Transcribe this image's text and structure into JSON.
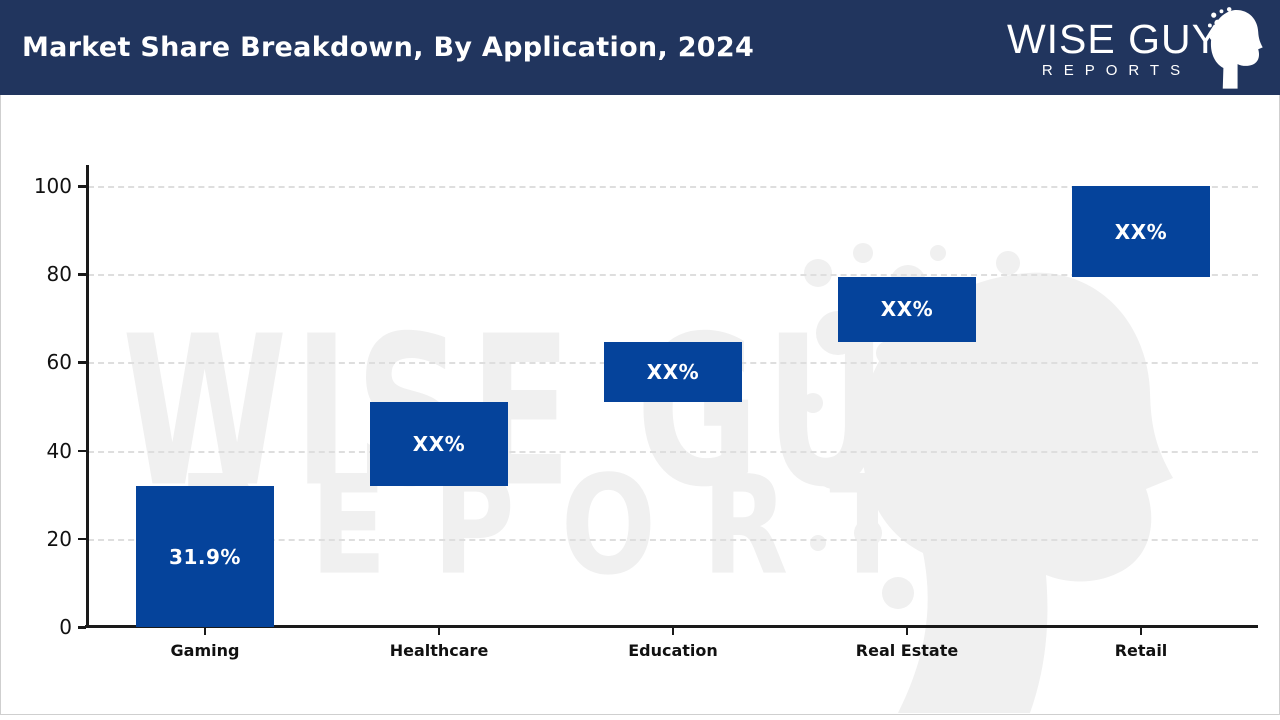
{
  "header": {
    "title": "Market Share Breakdown, By Application, 2024",
    "logo": {
      "name": "WISE GUY",
      "sub": "REPORTS"
    }
  },
  "watermark": {
    "line1": "WISE GUY",
    "line2": "REPORTS"
  },
  "chart_data": {
    "type": "bar",
    "variant": "waterfall",
    "title": "Market Share Breakdown, By Application, 2024",
    "categories": [
      "Gaming",
      "Healthcare",
      "Education",
      "Real Estate",
      "Retail"
    ],
    "segments": [
      {
        "category": "Gaming",
        "start": 0,
        "end": 31.9,
        "label": "31.9%"
      },
      {
        "category": "Healthcare",
        "start": 31.9,
        "end": 51.0,
        "label": "XX%"
      },
      {
        "category": "Education",
        "start": 51.0,
        "end": 64.7,
        "label": "XX%"
      },
      {
        "category": "Real Estate",
        "start": 64.7,
        "end": 79.3,
        "label": "XX%"
      },
      {
        "category": "Retail",
        "start": 79.3,
        "end": 100,
        "label": "XX%"
      }
    ],
    "xlabel": "",
    "ylabel": "",
    "ylim": [
      0,
      100
    ],
    "yticks": [
      0,
      20,
      40,
      60,
      80,
      100
    ],
    "grid": "horizontal-dashed",
    "legend": "none"
  },
  "colors": {
    "header_bg": "#21355E",
    "bar": "#05439B",
    "bar_label": "#FFFFFF",
    "grid": "#DEDEDE",
    "axis": "#1A1A1A",
    "watermark": "#F0F0F0",
    "frame": "#CFCFCF"
  }
}
